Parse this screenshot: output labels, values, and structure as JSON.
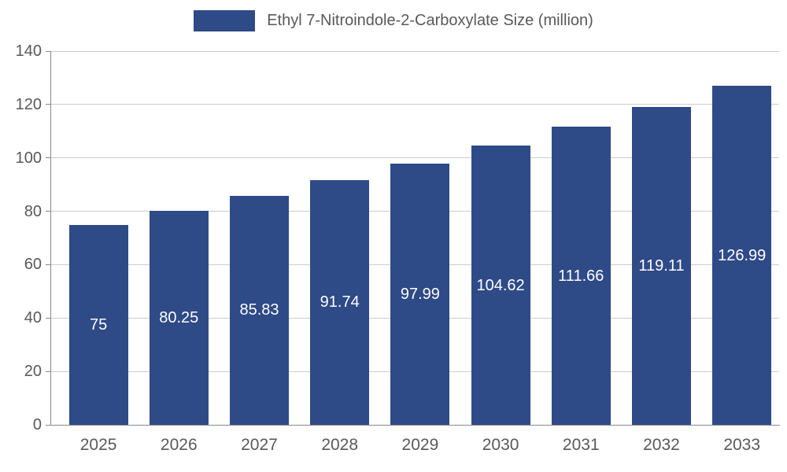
{
  "chart_data": {
    "type": "bar",
    "title": "",
    "legend": {
      "label": "Ethyl 7-Nitroindole-2-Carboxylate Size (million)",
      "position": "top"
    },
    "categories": [
      "2025",
      "2026",
      "2027",
      "2028",
      "2029",
      "2030",
      "2031",
      "2032",
      "2033"
    ],
    "values": [
      75,
      80.25,
      85.83,
      91.74,
      97.99,
      104.62,
      111.66,
      119.11,
      126.99
    ],
    "value_labels": [
      "75",
      "80.25",
      "85.83",
      "91.74",
      "97.99",
      "104.62",
      "111.66",
      "119.11",
      "126.99"
    ],
    "xlabel": "",
    "ylabel": "",
    "ylim": [
      0,
      140
    ],
    "yticks": [
      0,
      20,
      40,
      60,
      80,
      100,
      120,
      140
    ],
    "grid": true,
    "colors": {
      "bar": "#2e4a87",
      "bar_label_text": "#ffffff",
      "axis_text": "#595959",
      "grid_line": "#cccccc",
      "axis_line": "#888888",
      "background": "#ffffff"
    }
  }
}
